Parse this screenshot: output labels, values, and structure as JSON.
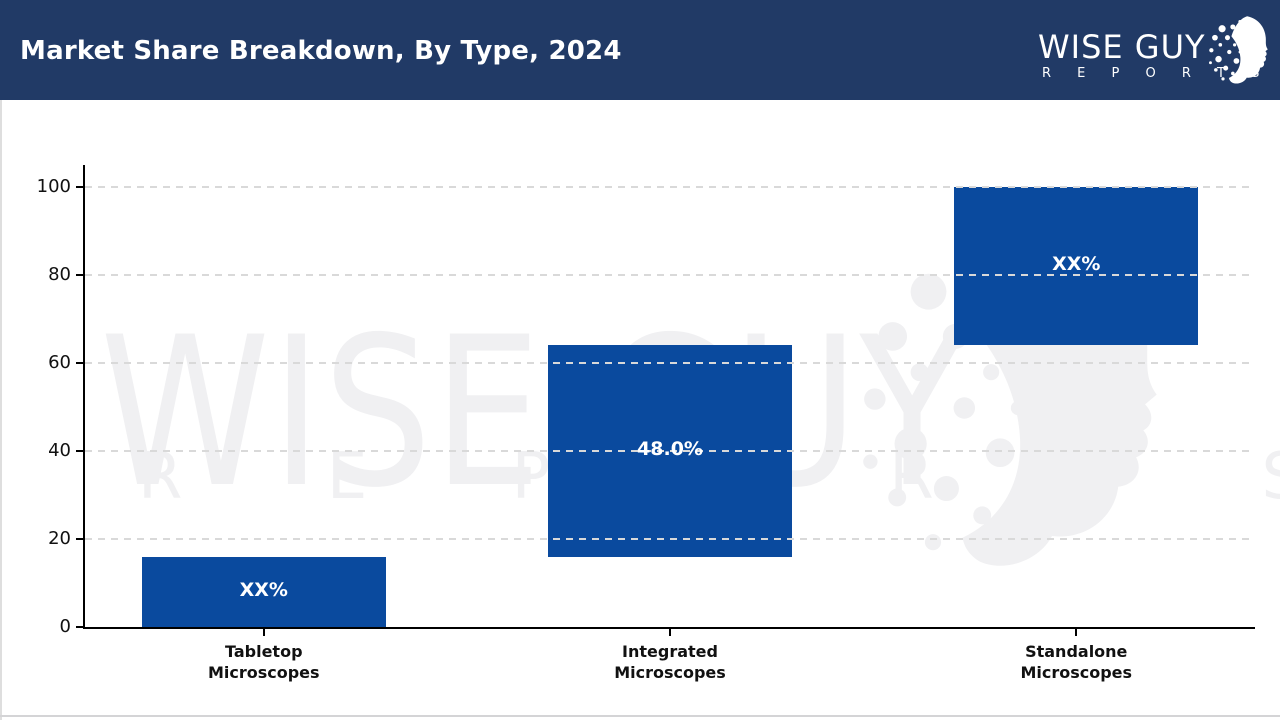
{
  "header": {
    "title": "Market Share Breakdown, By Type, 2024",
    "background": "#213a66",
    "logo": {
      "wordmark": "WISE GUY",
      "subtext": "R E P O R T S",
      "icon": "dotted-face-profile-icon"
    }
  },
  "watermark": {
    "wordmark": "WISE GUY",
    "subtext": "R E P O R T S",
    "icon": "dotted-face-profile-icon",
    "color": "#f0f0f2"
  },
  "chart_data": {
    "type": "bar",
    "variant": "floating-waterfall",
    "title": "Market Share Breakdown, By Type, 2024",
    "categories": [
      "Tabletop Microscopes",
      "Integrated Microscopes",
      "Standalone Microscopes"
    ],
    "category_lines": [
      [
        "Tabletop",
        "Microscopes"
      ],
      [
        "Integrated",
        "Microscopes"
      ],
      [
        "Standalone",
        "Microscopes"
      ]
    ],
    "segments": [
      {
        "category": "Tabletop Microscopes",
        "start": 0,
        "end": 16,
        "height": 16,
        "label": "XX%"
      },
      {
        "category": "Integrated Microscopes",
        "start": 16,
        "end": 64,
        "height": 48,
        "label": "48.0%"
      },
      {
        "category": "Standalone Microscopes",
        "start": 64,
        "end": 100,
        "height": 36,
        "label": "XX%"
      }
    ],
    "unit": "%",
    "xlabel": "",
    "ylabel": "",
    "ylim": [
      0,
      105
    ],
    "yticks": [
      0,
      20,
      40,
      60,
      80,
      100
    ],
    "grid": {
      "axis": "y",
      "style": "dashed",
      "color": "#d9d9d9",
      "above_bars": true
    },
    "legend": "none",
    "bar_color": "#0a4a9e",
    "bar_label_color": "#ffffff",
    "axis_color": "#000000"
  }
}
